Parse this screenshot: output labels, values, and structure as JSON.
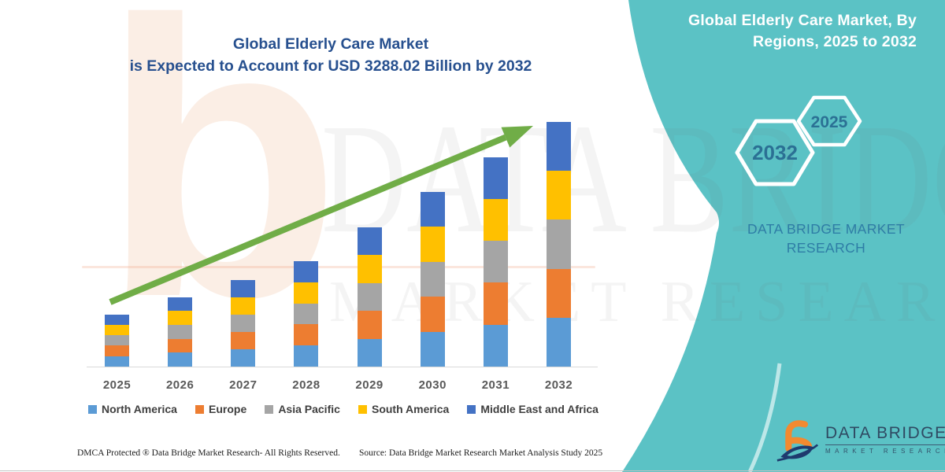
{
  "header": {
    "title_line1": "Global Elderly Care Market",
    "title_line2": "is Expected to Account for USD 3288.02 Billion by 2032"
  },
  "side_panel": {
    "heading_line1": "Global Elderly Care Market, By",
    "heading_line2": "Regions, 2025 to 2032",
    "hexagons": [
      {
        "label": "2032"
      },
      {
        "label": "2025"
      }
    ],
    "brand_line1": "DATA BRIDGE MARKET",
    "brand_line2": "RESEARCH"
  },
  "watermarks": {
    "letter": "b",
    "center_line1": "DATA BRIDGE",
    "center_line2": "MARKET RESEARCH"
  },
  "chart_data": {
    "type": "bar",
    "stacked": true,
    "title": "Global Elderly Care Market is Expected to Account for USD 3288.02 Billion by 2032",
    "unit": "USD Billion",
    "categories": [
      "2025",
      "2026",
      "2027",
      "2028",
      "2029",
      "2030",
      "2031",
      "2032"
    ],
    "series": [
      {
        "name": "North America",
        "color": "#5B9BD5",
        "values": [
          141,
          187,
          234,
          283,
          375,
          469,
          564,
          657.6
        ]
      },
      {
        "name": "Europe",
        "color": "#ED7D31",
        "values": [
          141,
          187,
          234,
          283,
          375,
          469,
          564,
          657.6
        ]
      },
      {
        "name": "Asia Pacific",
        "color": "#A5A5A5",
        "values": [
          141,
          187,
          234,
          283,
          375,
          469,
          564,
          657.6
        ]
      },
      {
        "name": "South America",
        "color": "#FFC000",
        "values": [
          141,
          187,
          234,
          283,
          375,
          469,
          564,
          657.6
        ]
      },
      {
        "name": "Middle East and Africa",
        "color": "#4472C4",
        "values": [
          141,
          187,
          234,
          283,
          375,
          469,
          564,
          657.6
        ]
      }
    ],
    "totals_estimated": [
      705,
      935,
      1170,
      1415,
      1875,
      2345,
      2820,
      3288.02
    ],
    "values_estimated": true,
    "y_axis_visible": false,
    "gridlines": false,
    "legend_position": "bottom",
    "trend_arrow": true
  },
  "footer": {
    "left": "DMCA Protected ® Data Bridge Market Research-  All Rights Reserved.",
    "source": "Source: Data Bridge Market Research  Market Analysis Study 2025"
  },
  "logo": {
    "name": "DATA BRIDGE",
    "subtitle": "MARKET RESEARCH"
  },
  "colors": {
    "accent_teal": "#5BC2C5",
    "title_blue": "#27508F",
    "arrow_green": "#70AD47",
    "axis_gray": "#D9D9D9",
    "label_gray": "#595959",
    "logo_orange": "#F28A30",
    "logo_navy": "#1E3A6E"
  }
}
